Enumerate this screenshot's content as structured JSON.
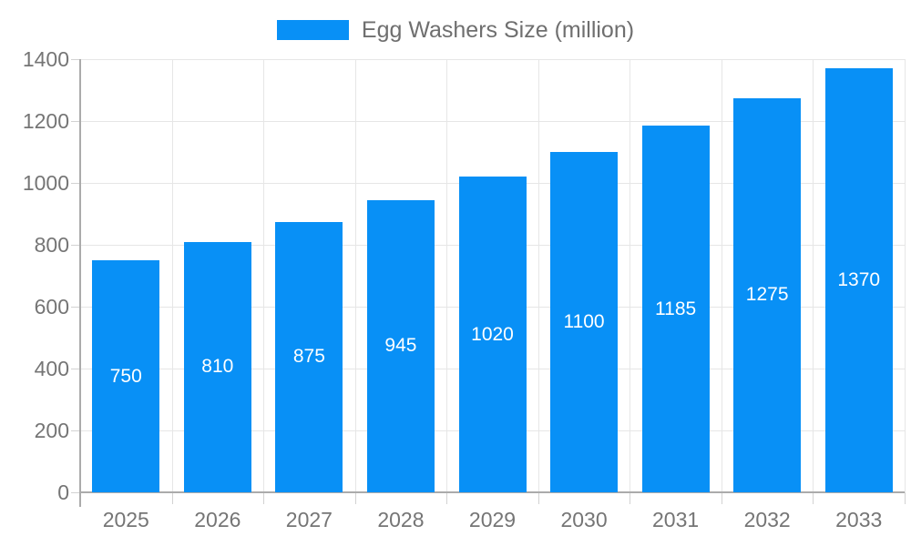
{
  "legend": {
    "items": [
      {
        "label": "Egg Washers Size (million)",
        "swatch_color": "#0890f6"
      }
    ]
  },
  "chart_data": {
    "type": "bar",
    "title": "Egg Washers Size (million)",
    "categories": [
      "2025",
      "2026",
      "2027",
      "2028",
      "2029",
      "2030",
      "2031",
      "2032",
      "2033"
    ],
    "series": [
      {
        "name": "Egg Washers Size (million)",
        "values": [
          750,
          810,
          875,
          945,
          1020,
          1100,
          1185,
          1275,
          1370
        ],
        "color": "#0890f6"
      }
    ],
    "data_labels": true,
    "data_label_color": "#ffffff",
    "xlabel": "",
    "ylabel": "",
    "ylim": [
      0,
      1400
    ],
    "ytick_step": 200,
    "ytick_labels": [
      "0",
      "200",
      "400",
      "600",
      "800",
      "1000",
      "1200",
      "1400"
    ],
    "grid": true,
    "legend_position": "top",
    "colors": {
      "bar": "#0890f6",
      "grid_line": "#e6e6e6",
      "axis_line": "#ababab",
      "tick_mark": "#d2d2d2",
      "tick_label": "#757575",
      "legend_text": "#6f6f6f",
      "background": "#ffffff"
    }
  }
}
